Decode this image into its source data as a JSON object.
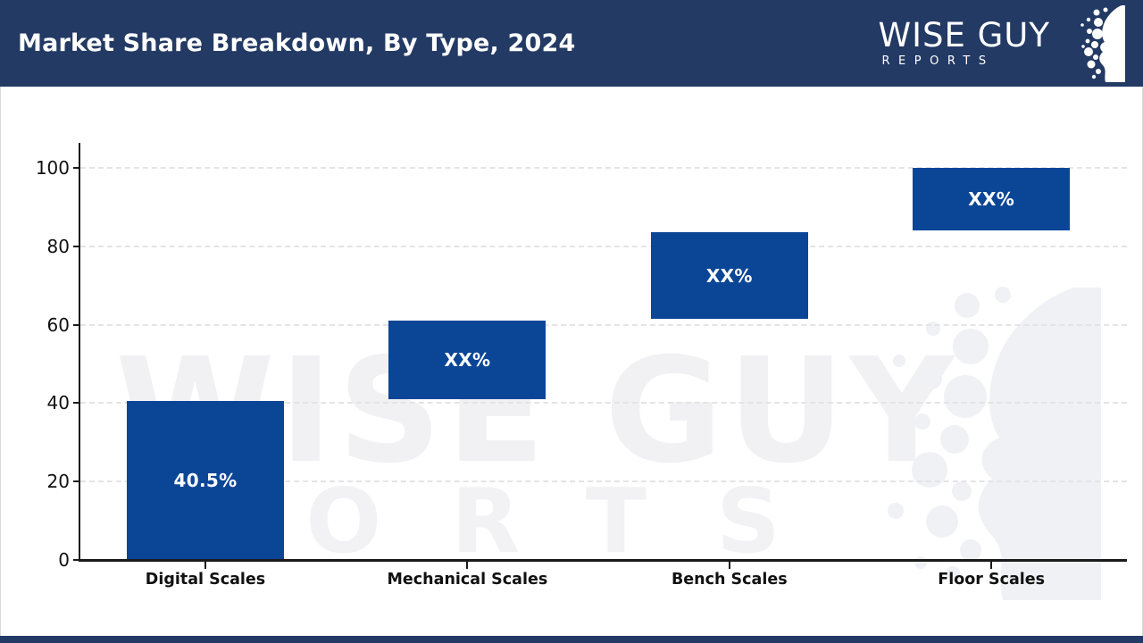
{
  "header": {
    "brand": {
      "name": "WISE GUY",
      "subtitle": "REPORTS"
    }
  },
  "watermark": {
    "line1": "WISE GUY",
    "line2": "PORTS"
  },
  "colors": {
    "header_bg": "#233a64",
    "bar": "#0b4596",
    "grid": "#e4e4e6",
    "axis": "#1a1a1a",
    "bar_label": "#ffffff",
    "watermark": "#f1f1f4"
  },
  "chart_data": {
    "type": "bar",
    "subtype": "waterfall",
    "title": "Market Share Breakdown, By Type, 2024",
    "categories": [
      "Digital Scales",
      "Mechanical Scales",
      "Bench Scales",
      "Floor Scales"
    ],
    "segments": [
      {
        "category": "Digital Scales",
        "start": 0,
        "end": 40.5,
        "label": "40.5%"
      },
      {
        "category": "Mechanical Scales",
        "start": 41,
        "end": 61,
        "label": "XX%"
      },
      {
        "category": "Bench Scales",
        "start": 61.5,
        "end": 83.5,
        "label": "XX%"
      },
      {
        "category": "Floor Scales",
        "start": 84,
        "end": 100,
        "label": "XX%"
      }
    ],
    "xlabel": "",
    "ylabel": "",
    "ylim": [
      0,
      106.5
    ],
    "yticks": [
      0,
      20,
      40,
      60,
      80,
      100
    ],
    "grid": "horizontal-dashed",
    "legend": "none"
  }
}
